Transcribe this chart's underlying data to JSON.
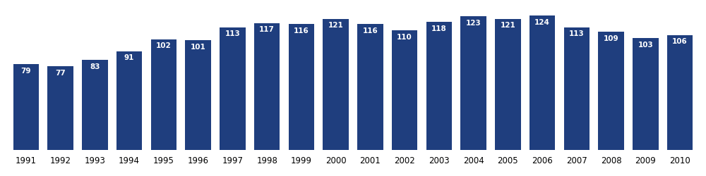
{
  "years": [
    1991,
    1992,
    1993,
    1994,
    1995,
    1996,
    1997,
    1998,
    1999,
    2000,
    2001,
    2002,
    2003,
    2004,
    2005,
    2006,
    2007,
    2008,
    2009,
    2010
  ],
  "values": [
    79,
    77,
    83,
    91,
    102,
    101,
    113,
    117,
    116,
    121,
    116,
    110,
    118,
    123,
    121,
    124,
    113,
    109,
    103,
    106
  ],
  "bar_color": "#1F3E7E",
  "label_color": "#ffffff",
  "label_fontsize": 7.5,
  "xtick_fontsize": 8.5,
  "background_color": "#ffffff",
  "ylim": [
    0,
    135
  ],
  "bar_width": 0.75
}
